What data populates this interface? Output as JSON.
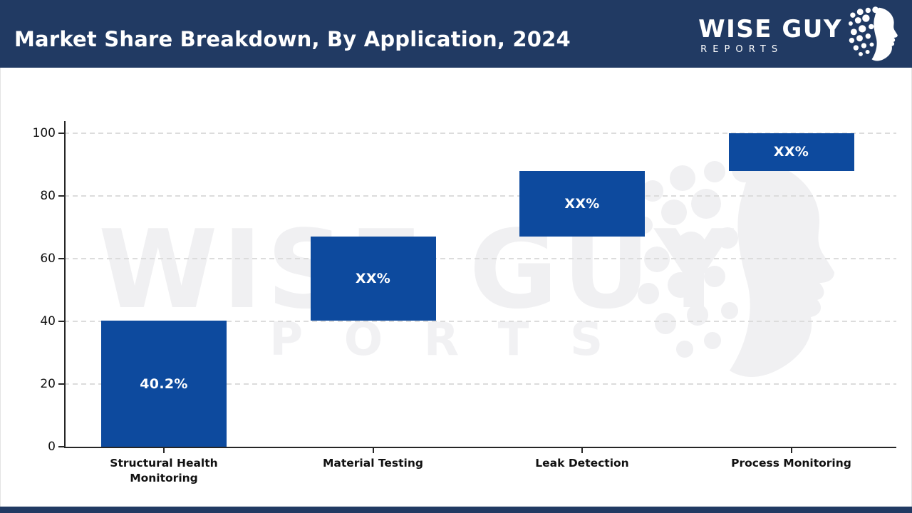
{
  "header": {
    "title": "Market Share Breakdown, By Application, 2024",
    "brand_name": "WISE GUY",
    "brand_sub": "REPORTS"
  },
  "watermark": {
    "line1": "WISE GUY",
    "line2": "REPORTS"
  },
  "chart_data": {
    "type": "bar",
    "variant": "waterfall",
    "title": "Market Share Breakdown, By Application, 2024",
    "categories": [
      "Structural Health Monitoring",
      "Material Testing",
      "Leak Detection",
      "Process Monitoring"
    ],
    "segments": [
      {
        "category": "Structural Health Monitoring",
        "start": 0,
        "end": 40.2,
        "label": "40.2%"
      },
      {
        "category": "Material Testing",
        "start": 40.2,
        "end": 67,
        "label": "XX%"
      },
      {
        "category": "Leak Detection",
        "start": 67,
        "end": 88,
        "label": "XX%"
      },
      {
        "category": "Process Monitoring",
        "start": 88,
        "end": 100,
        "label": "XX%"
      }
    ],
    "ylim": [
      0,
      100
    ],
    "yticks": [
      "0",
      "20",
      "40",
      "60",
      "80",
      "100"
    ],
    "grid": "horizontal-dashed",
    "legend_position": "none",
    "colors": {
      "bar": "#0d4a9e",
      "value_label": "#ffffff",
      "axis": "#262626",
      "gridline": "#dcdcdc",
      "header_navy": "#213a63"
    }
  }
}
